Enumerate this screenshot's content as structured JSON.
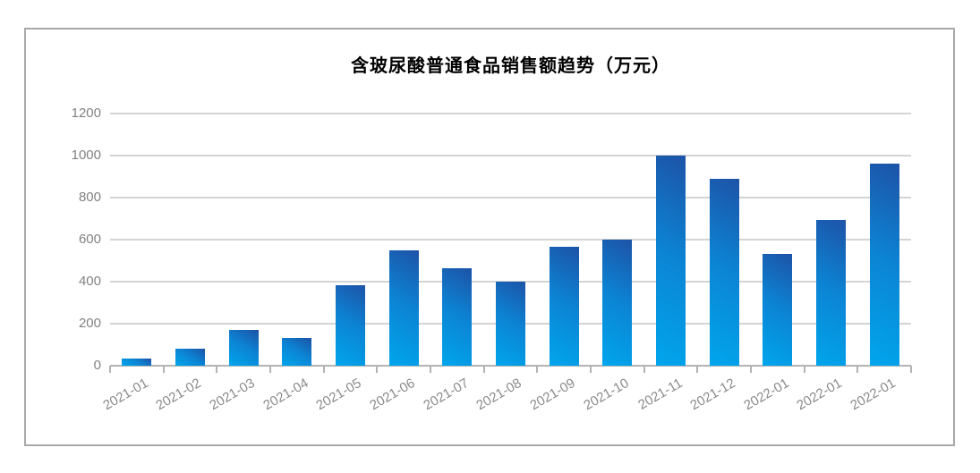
{
  "chart_data": {
    "type": "bar",
    "title": "含玻尿酸普通食品销售额趋势（万元）",
    "categories": [
      "2021-01",
      "2021-02",
      "2021-03",
      "2021-04",
      "2021-05",
      "2021-06",
      "2021-07",
      "2021-08",
      "2021-09",
      "2021-10",
      "2021-11",
      "2021-12",
      "2022-01",
      "2022-01",
      "2022-01"
    ],
    "values": [
      35,
      80,
      170,
      130,
      385,
      550,
      465,
      400,
      565,
      600,
      1000,
      890,
      530,
      695,
      960
    ],
    "xlabel": "",
    "ylabel": "",
    "ylim": [
      0,
      1200
    ],
    "yticks": [
      0,
      200,
      400,
      600,
      800,
      1000,
      1200
    ],
    "grid": true,
    "legend": "none",
    "bar_gradient_start": "#00a6ec",
    "bar_gradient_end": "#1d53a7",
    "gridline_color": "#d4d4d4",
    "axis_color": "#b3b3b3",
    "tick_label_color": "#8a8a8a",
    "frame_border_color": "#a9a9a9"
  }
}
